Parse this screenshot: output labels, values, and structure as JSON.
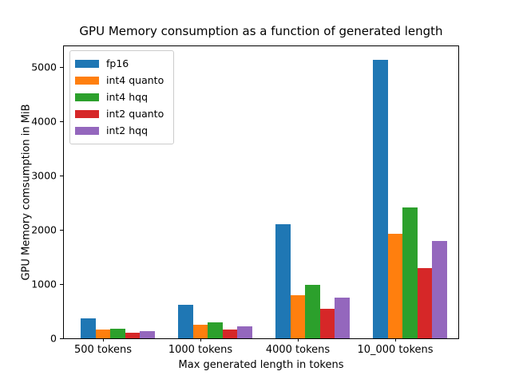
{
  "chart_data": {
    "type": "bar",
    "title": "GPU Memory consumption as a function of generated length",
    "xlabel": "Max generated length in tokens",
    "ylabel": "GPU Memory comsumption in MiB",
    "categories": [
      "500 tokens",
      "1000 tokens",
      "4000 tokens",
      "10_000 tokens"
    ],
    "series": [
      {
        "name": "fp16",
        "color": "#1f77b4",
        "values": [
          370,
          615,
          2110,
          5140
        ]
      },
      {
        "name": "int4 quanto",
        "color": "#ff7f0e",
        "values": [
          165,
          250,
          800,
          1925
        ]
      },
      {
        "name": "int4 hqq",
        "color": "#2ca02c",
        "values": [
          175,
          300,
          990,
          2420
        ]
      },
      {
        "name": "int2 quanto",
        "color": "#d62728",
        "values": [
          110,
          165,
          550,
          1290
        ]
      },
      {
        "name": "int2 hqq",
        "color": "#9467bd",
        "values": [
          135,
          215,
          750,
          1795
        ]
      }
    ],
    "ylim": [
      0,
      5390
    ],
    "yticks": [
      0,
      1000,
      2000,
      3000,
      4000,
      5000
    ],
    "legend_position": "upper left",
    "grid": false
  }
}
